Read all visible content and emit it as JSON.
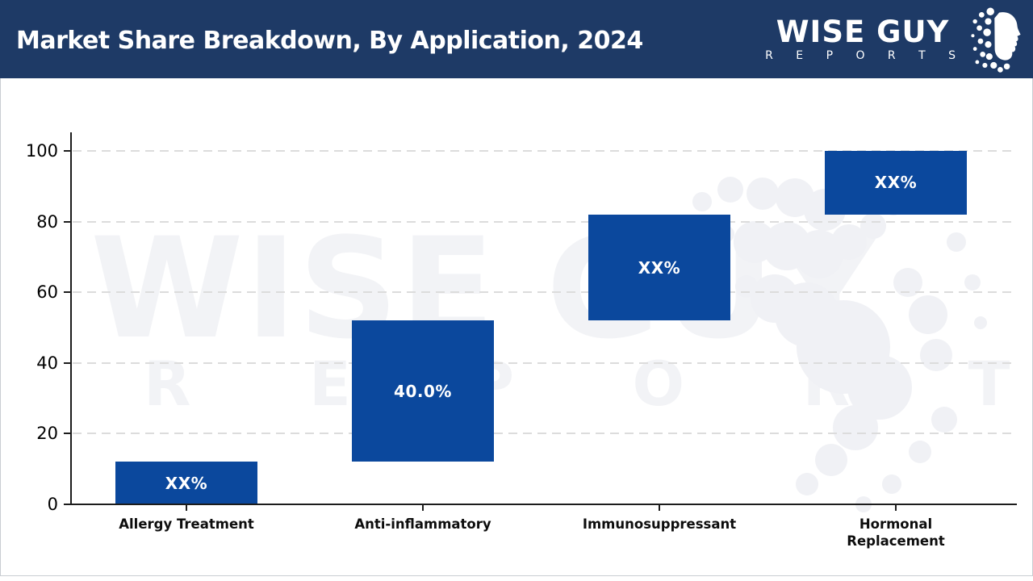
{
  "header": {
    "title": "Market Share Breakdown, By Application, 2024",
    "background_color": "#1e3a66",
    "logo": {
      "line1": "WISE GUY",
      "line2": "R E P O R T S"
    }
  },
  "watermark": {
    "line1": "WISE GUY",
    "line2": "R E P O R T S"
  },
  "chart_data": {
    "type": "bar",
    "subtype": "waterfall",
    "title": "Market Share Breakdown, By Application, 2024",
    "categories": [
      "Allergy Treatment",
      "Anti-inflammatory",
      "Immunosuppressant",
      "Hormonal Replacement"
    ],
    "x_label_lines": [
      [
        "Allergy Treatment"
      ],
      [
        "Anti-inflammatory"
      ],
      [
        "Immunosuppressant"
      ],
      [
        "Hormonal",
        "Replacement"
      ]
    ],
    "segments": [
      {
        "category": "Allergy Treatment",
        "start": 0,
        "end": 12,
        "value_label": "XX%"
      },
      {
        "category": "Anti-inflammatory",
        "start": 12,
        "end": 52,
        "value_label": "40.0%"
      },
      {
        "category": "Immunosuppressant",
        "start": 52,
        "end": 82,
        "value_label": "XX%"
      },
      {
        "category": "Hormonal Replacement",
        "start": 82,
        "end": 100,
        "value_label": "XX%"
      }
    ],
    "ylim": [
      0,
      100
    ],
    "yticks": [
      0,
      20,
      40,
      60,
      80,
      100
    ],
    "grid": "horizontal-dashed",
    "legend": "none",
    "bar_color": "#0b489d",
    "bar_label_color": "#ffffff",
    "grid_color": "#dcdcdc",
    "axis_color": "#1c1c1c"
  }
}
